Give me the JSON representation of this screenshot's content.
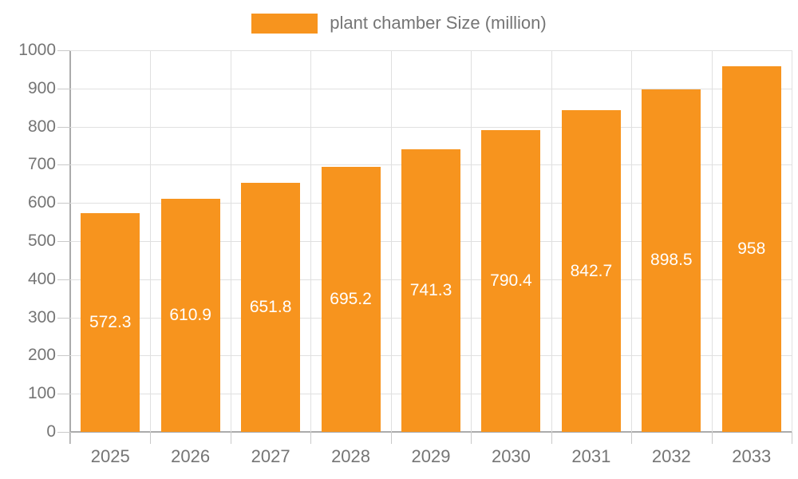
{
  "chart_data": {
    "type": "bar",
    "title": "",
    "legend": "plant chamber Size (million)",
    "categories": [
      "2025",
      "2026",
      "2027",
      "2028",
      "2029",
      "2030",
      "2031",
      "2032",
      "2033"
    ],
    "values": [
      572.3,
      610.9,
      651.8,
      695.2,
      741.3,
      790.4,
      842.7,
      898.5,
      958
    ],
    "yticks": [
      0,
      100,
      200,
      300,
      400,
      500,
      600,
      700,
      800,
      900,
      1000
    ],
    "ylim": [
      0,
      1000
    ],
    "xlabel": "",
    "ylabel": "",
    "grid": true,
    "legend_position": "top-center",
    "data_labels": "centered-inside-bars",
    "colors": {
      "bar": "#F7941E",
      "grid": "#E0E0E0",
      "axis": "#ABABAB",
      "tick": "#C9C9C9",
      "text": "#757575",
      "data_label": "#FFFFFF",
      "background": "#FFFFFF"
    }
  }
}
